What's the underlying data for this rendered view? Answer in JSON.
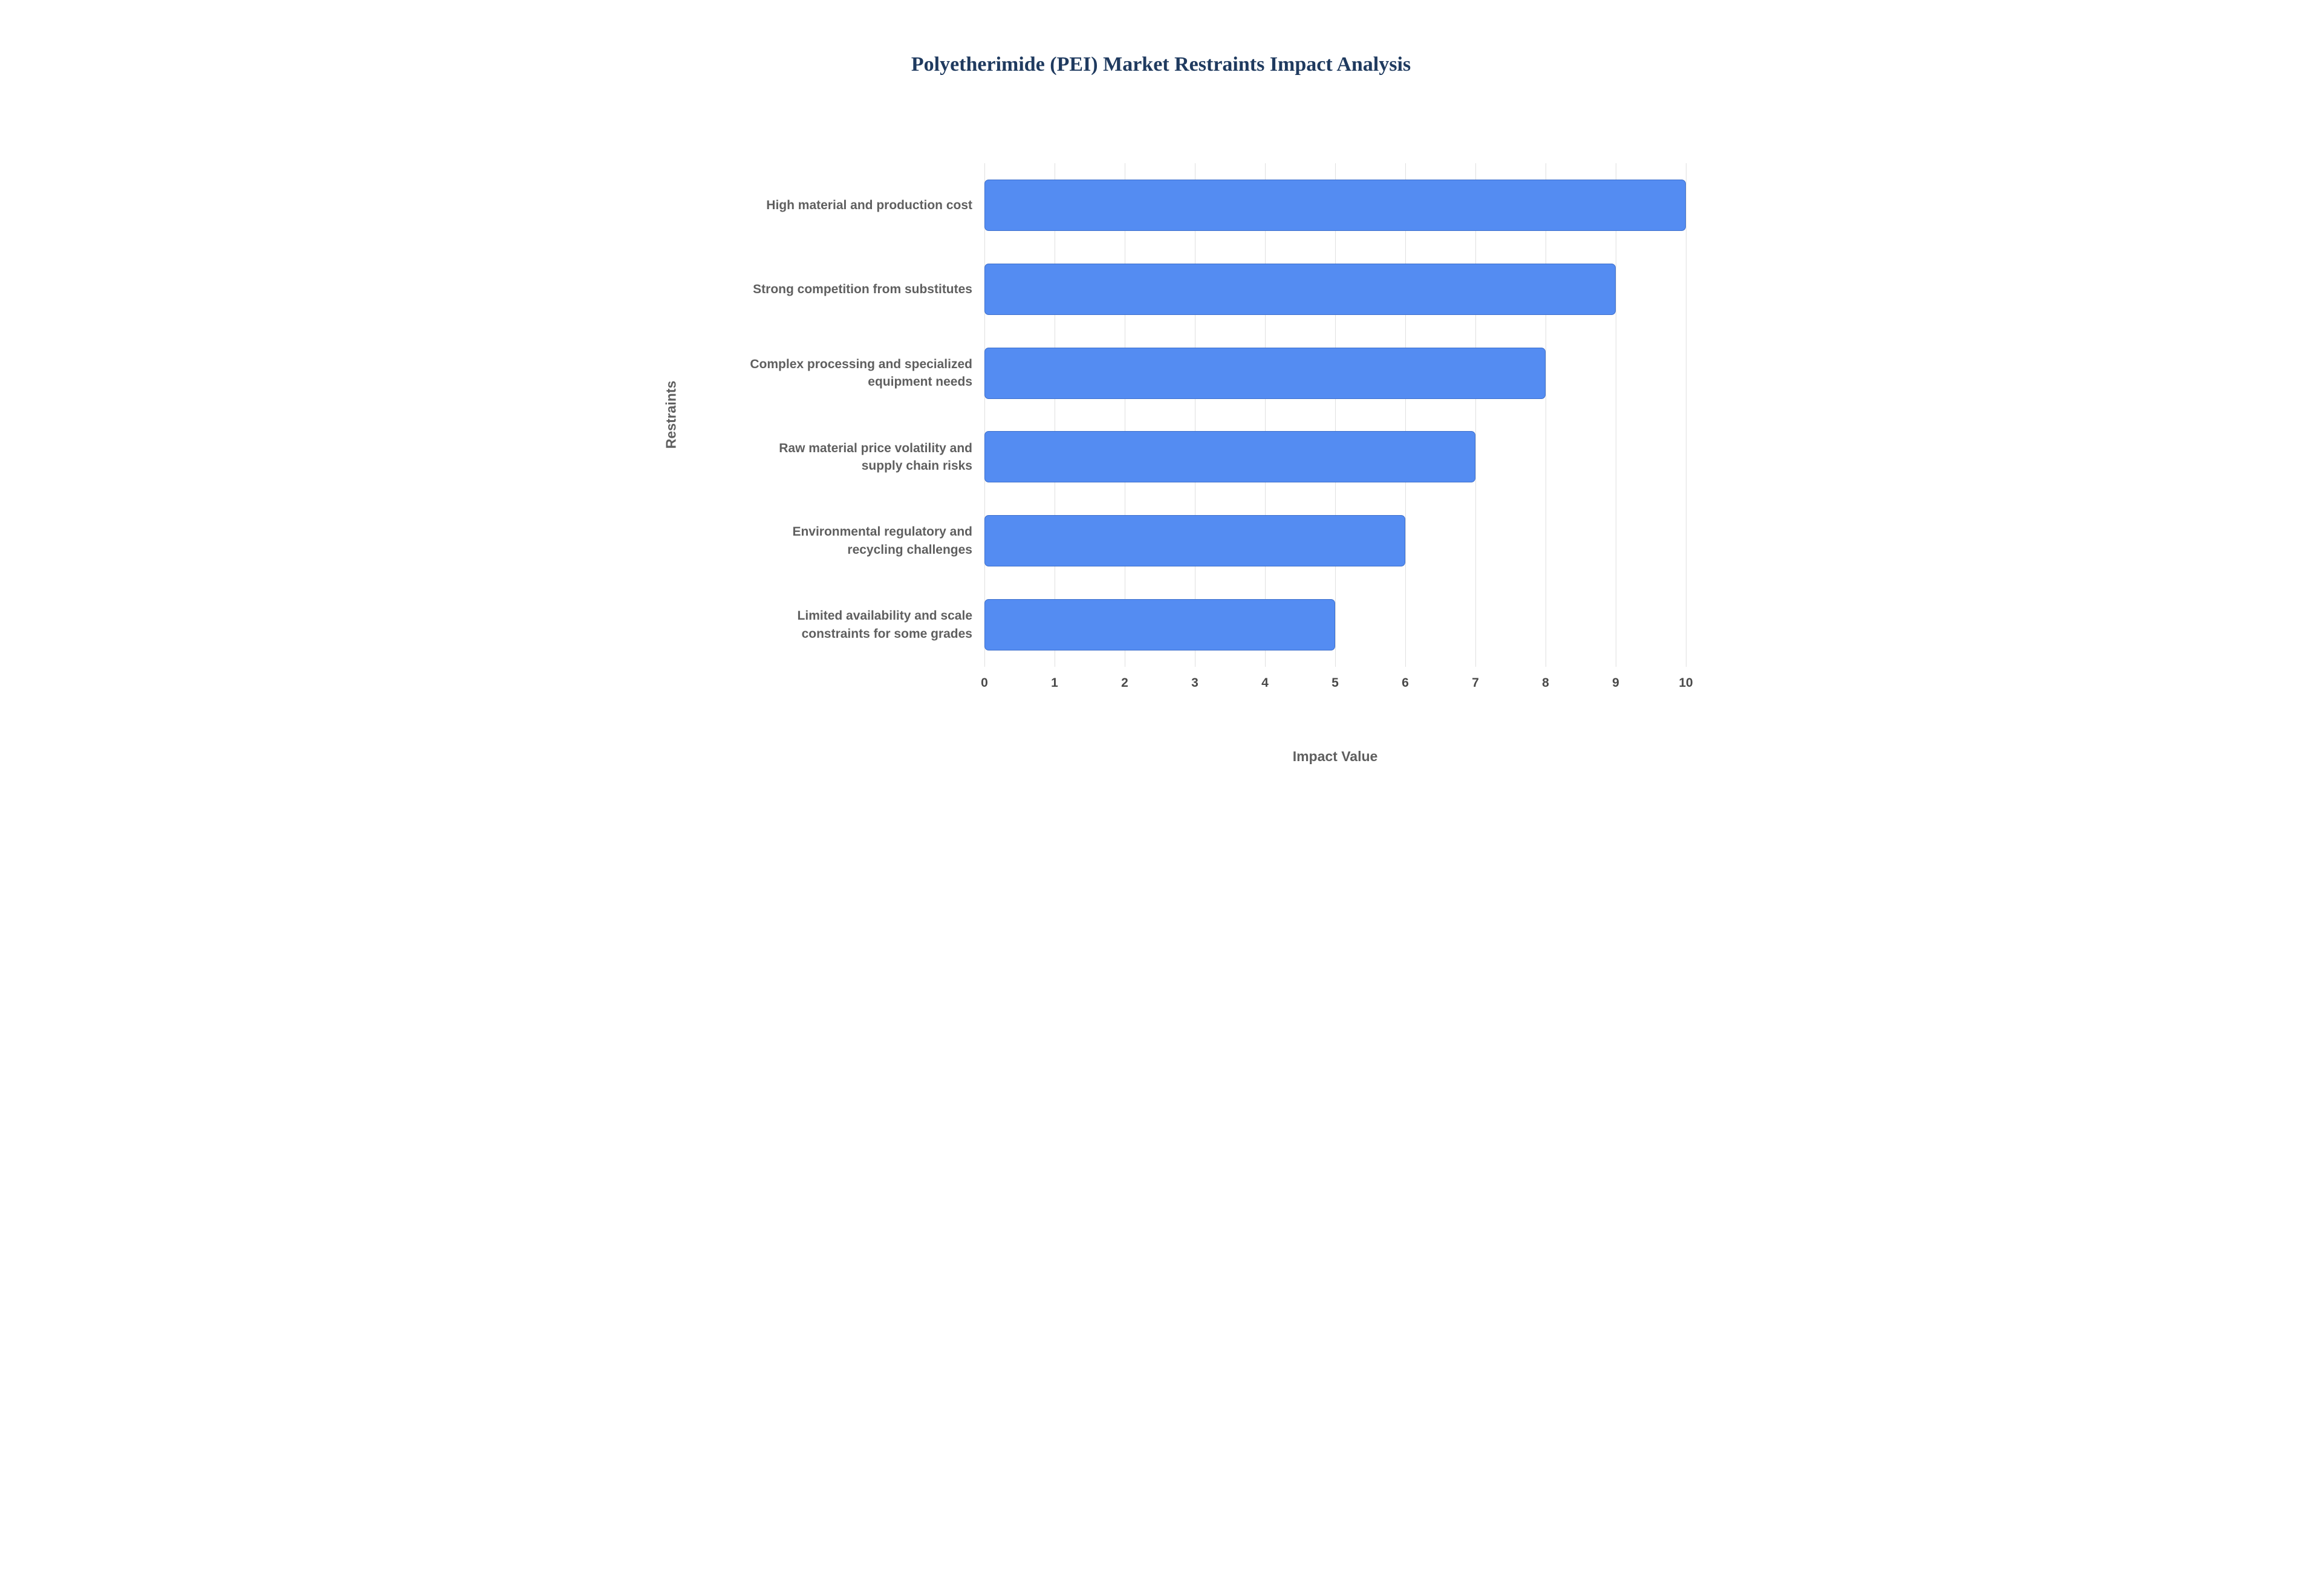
{
  "chart_data": {
    "type": "bar",
    "orientation": "horizontal",
    "title": "Polyetherimide (PEI) Market Restraints Impact Analysis",
    "xlabel": "Impact Value",
    "ylabel": "Restraints",
    "categories": [
      "High material and production cost",
      "Strong competition from substitutes",
      "Complex processing and specialized equipment needs",
      "Raw material price volatility and supply chain risks",
      "Environmental regulatory and recycling challenges",
      "Limited availability and scale constraints for some grades"
    ],
    "values": [
      10,
      9,
      8,
      7,
      6,
      5
    ],
    "xlim": [
      0,
      10
    ],
    "x_ticks": [
      0,
      1,
      2,
      3,
      4,
      5,
      6,
      7,
      8,
      9,
      10
    ],
    "grid": true,
    "legend": false,
    "colors": {
      "bar_fill": "#548cf2",
      "bar_border": "#3d6fcc",
      "title": "#1f3a5f",
      "axis_label": "#5f5f5f",
      "tick_label": "#4a4a4a",
      "grid_line": "#e0e0e0",
      "background": "#ffffff"
    }
  }
}
